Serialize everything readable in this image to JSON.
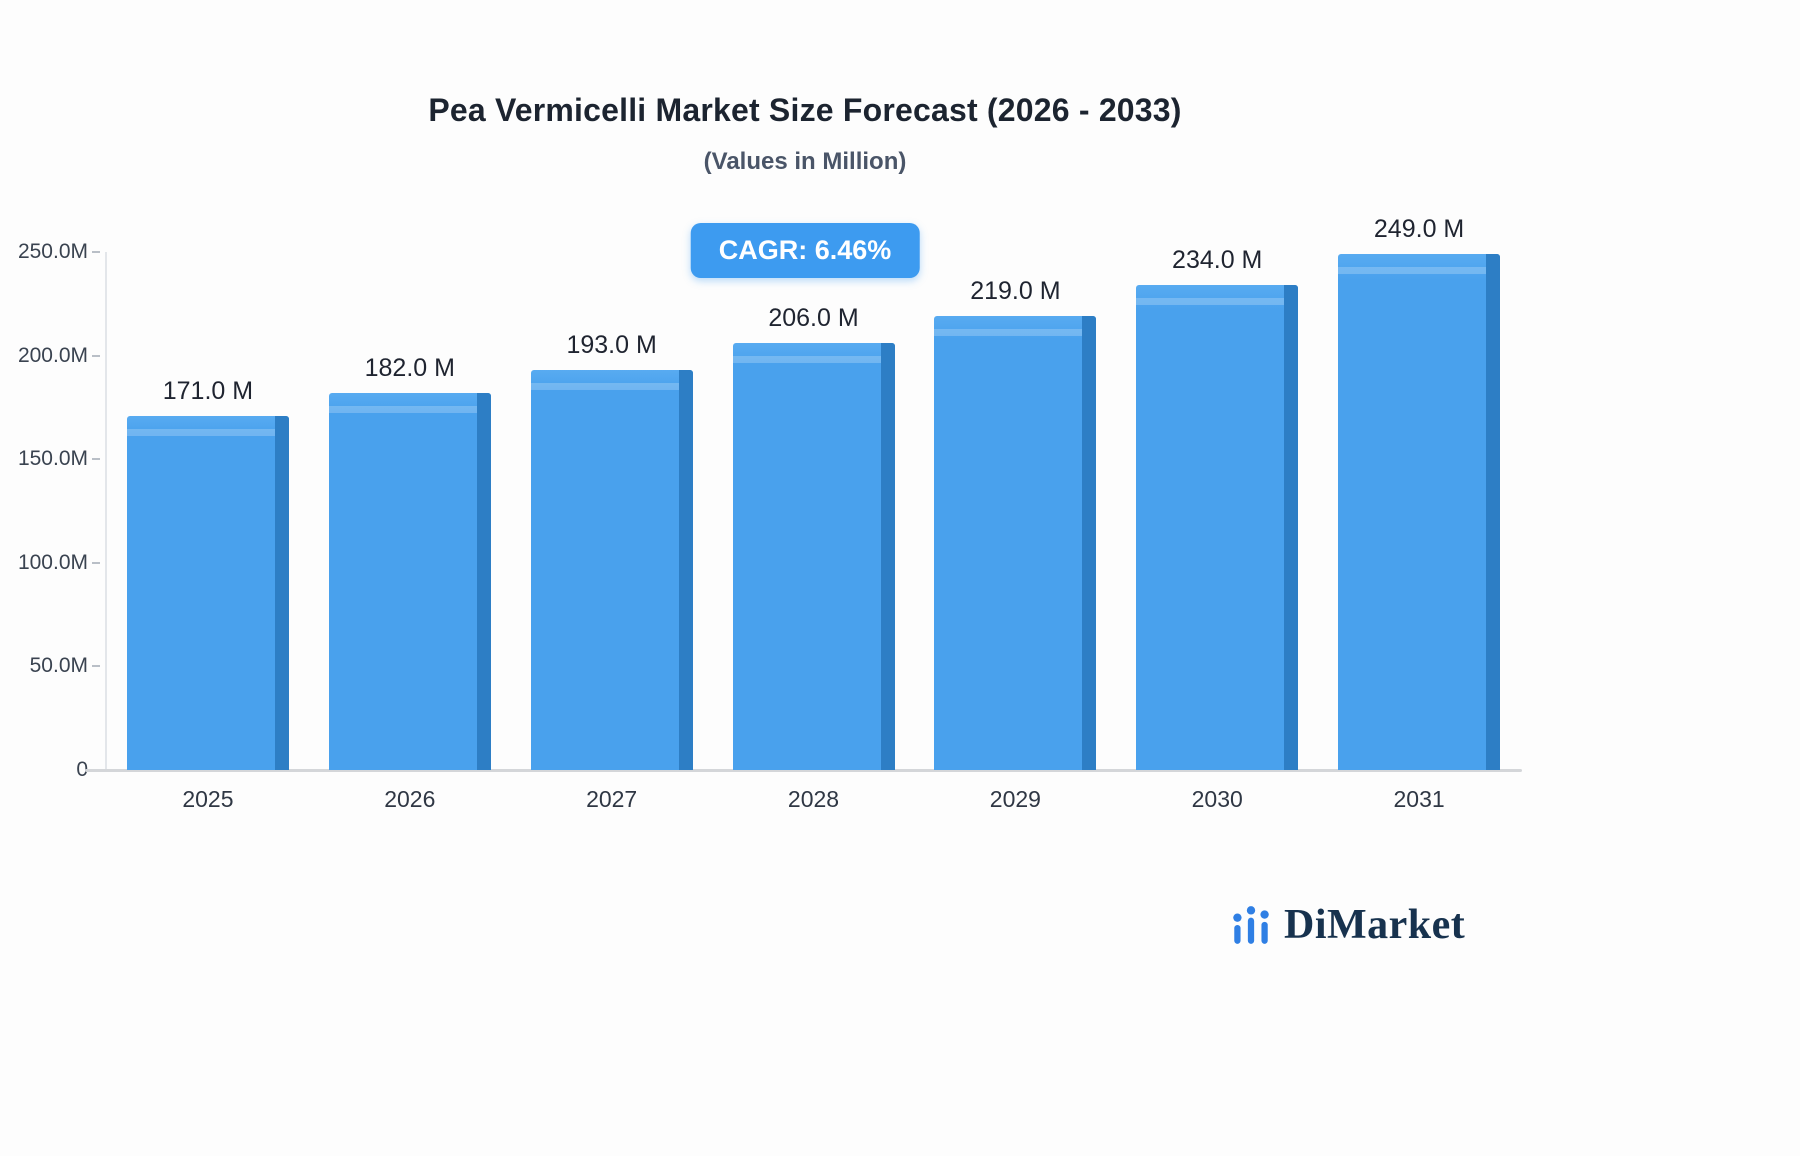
{
  "chart_data": {
    "type": "bar",
    "title": "Pea Vermicelli Market Size Forecast (2026 - 2033)",
    "subtitle": "(Values in Million)",
    "cagr_label": "CAGR: 6.46%",
    "categories": [
      "2025",
      "2026",
      "2027",
      "2028",
      "2029",
      "2030",
      "2031"
    ],
    "values": [
      171,
      182,
      193,
      206,
      219,
      234,
      249
    ],
    "value_labels": [
      "171.0 M",
      "182.0 M",
      "193.0 M",
      "206.0 M",
      "219.0 M",
      "234.0 M",
      "249.0 M"
    ],
    "y_tick_labels": [
      "0",
      "50.0M",
      "100.0M",
      "150.0M",
      "200.0M",
      "250.0M"
    ],
    "ylim": [
      0,
      250
    ],
    "grid": false,
    "legend": false,
    "colors": {
      "bar": "#49a1ed",
      "bar_side": "#2d7ec5",
      "badge_bg": "#3d9bf0",
      "badge_text": "#ffffff"
    }
  },
  "branding": {
    "logo_text": "DiMarket",
    "logo_icon": "mini-bar-chart-icon"
  }
}
